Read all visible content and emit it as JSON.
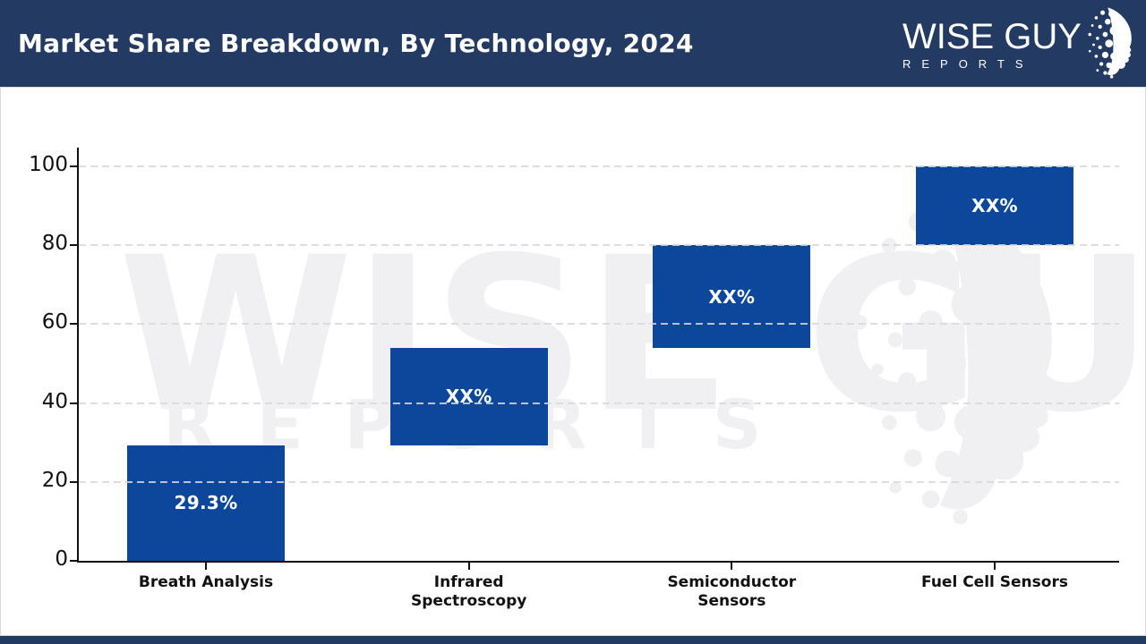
{
  "header": {
    "title": "Market Share Breakdown, By Technology, 2024",
    "logo": {
      "line1": "WISE GUY",
      "line2": "REPORTS"
    }
  },
  "watermark": {
    "line1": "WISE GUY",
    "line2": "REPORTS"
  },
  "colors": {
    "header_navy": "#233a63",
    "bar_blue": "#0c479c",
    "watermark_gray": "#f0f0f2",
    "gridline_gray": "#d8d8d8",
    "axis_black": "#111111"
  },
  "chart_data": {
    "type": "bar",
    "subtype": "waterfall",
    "title": "Market Share Breakdown, By Technology, 2024",
    "categories": [
      "Breath Analysis",
      "Infrared Spectroscopy",
      "Semiconductor Sensors",
      "Fuel Cell Sensors"
    ],
    "xtick_labels": [
      "Breath Analysis",
      "Infrared\nSpectroscopy",
      "Semiconductor\nSensors",
      "Fuel Cell Sensors"
    ],
    "segments": [
      {
        "category": "Breath Analysis",
        "start": 0,
        "end": 29.3,
        "label": "29.3%"
      },
      {
        "category": "Infrared Spectroscopy",
        "start": 29.3,
        "end": 54,
        "label": "XX%"
      },
      {
        "category": "Semiconductor Sensors",
        "start": 54,
        "end": 80,
        "label": "XX%"
      },
      {
        "category": "Fuel Cell Sensors",
        "start": 80,
        "end": 100,
        "label": "XX%"
      }
    ],
    "ylim": [
      0,
      100
    ],
    "yticks": [
      0,
      20,
      40,
      60,
      80,
      100
    ],
    "grid": "horizontal-dashed",
    "legend": "none",
    "bar_color": "#0c479c",
    "label_color": "#ffffff"
  }
}
